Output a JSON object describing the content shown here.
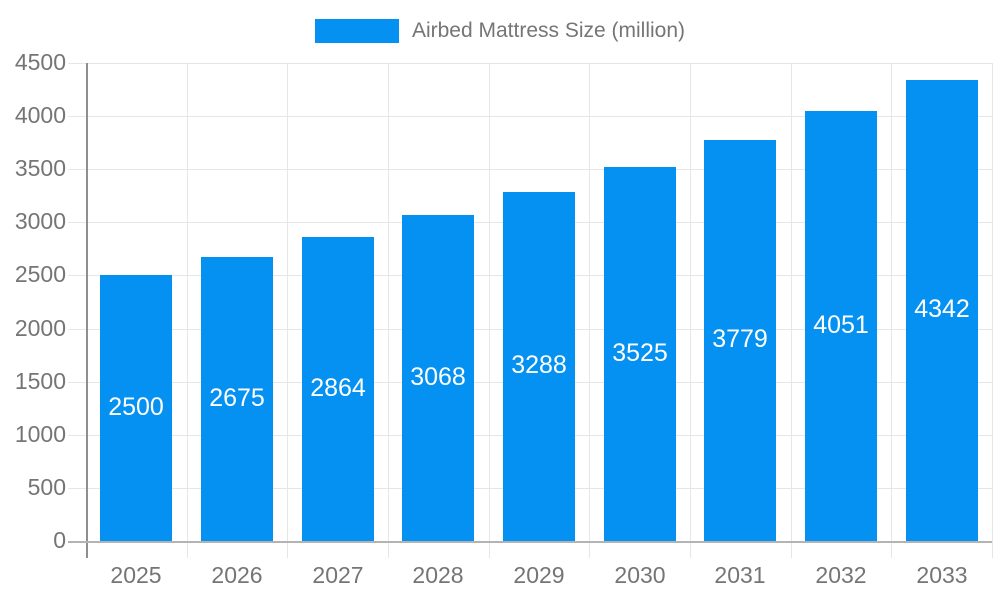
{
  "legend": {
    "label": "Airbed Mattress Size (million)"
  },
  "colors": {
    "bar": "#0591f2",
    "axis_text": "#757575",
    "grid_line": "#e6e6e6",
    "axis_line": "#a3a3a3",
    "value_label": "#ffffff",
    "background": "#ffffff"
  },
  "chart_data": {
    "type": "bar",
    "title": "Airbed Mattress Size (million)",
    "categories": [
      "2025",
      "2026",
      "2027",
      "2028",
      "2029",
      "2030",
      "2031",
      "2032",
      "2033"
    ],
    "values": [
      2500,
      2675,
      2864,
      3068,
      3288,
      3525,
      3779,
      4051,
      4342
    ],
    "series_name": "Airbed Mattress Size (million)",
    "xlabel": "",
    "ylabel": "",
    "ylim": [
      0,
      4500
    ],
    "ytick_step": 500,
    "yticks": [
      0,
      500,
      1000,
      1500,
      2000,
      2500,
      3000,
      3500,
      4000,
      4500
    ],
    "grid": true,
    "legend_position": "top-center",
    "value_labels": "inside-center"
  }
}
